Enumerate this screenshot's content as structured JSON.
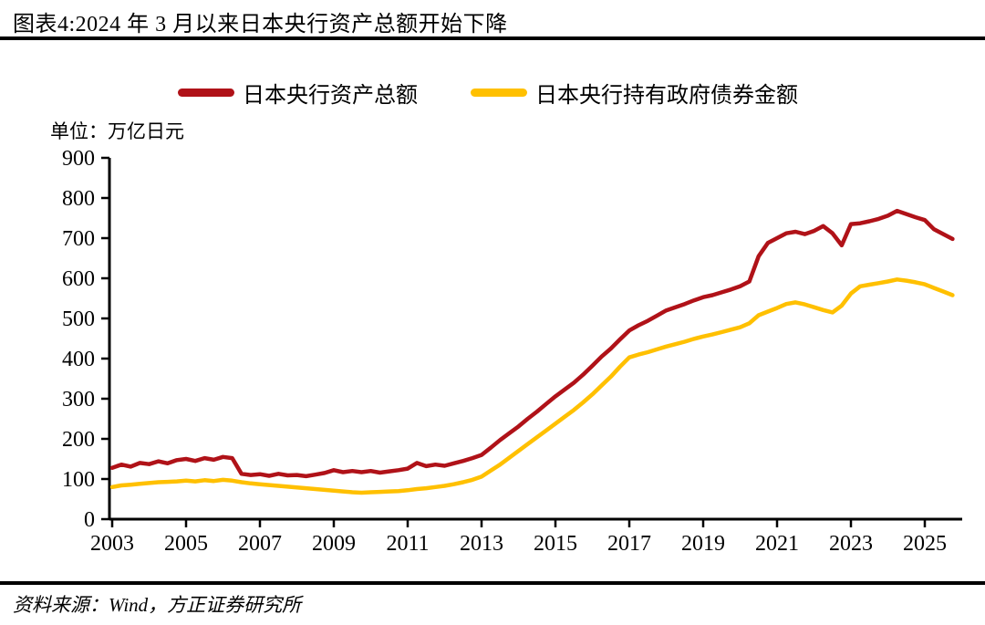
{
  "page": {
    "title": "图表4:2024 年 3 月以来日本央行资产总额开始下降",
    "source": "资料来源：Wind，方正证券研究所"
  },
  "unit_label": "单位：万亿日元",
  "legend": {
    "items": [
      {
        "label": "日本央行资产总额",
        "color": "#B01218"
      },
      {
        "label": "日本央行持有政府债券金额",
        "color": "#FFC000"
      }
    ]
  },
  "chart_data": {
    "type": "line",
    "title": "图表4:2024 年 3 月以来日本央行资产总额开始下降",
    "ylabel": "单位：万亿日元",
    "xlabel": "",
    "grid": false,
    "legend_position": "top",
    "ylim": [
      0,
      900
    ],
    "yticks": [
      0,
      100,
      200,
      300,
      400,
      500,
      600,
      700,
      800,
      900
    ],
    "xticks": [
      2003,
      2005,
      2007,
      2009,
      2011,
      2013,
      2015,
      2017,
      2019,
      2021,
      2023,
      2025
    ],
    "x_start": 2003.0,
    "x_step": 0.25,
    "x_end": 2025.75,
    "series": [
      {
        "name": "日本央行资产总额",
        "color": "#B01218",
        "values": [
          128,
          136,
          131,
          140,
          137,
          144,
          139,
          147,
          150,
          145,
          152,
          148,
          155,
          152,
          113,
          110,
          112,
          108,
          113,
          109,
          110,
          107,
          111,
          115,
          122,
          117,
          120,
          117,
          120,
          116,
          119,
          122,
          126,
          140,
          132,
          136,
          133,
          139,
          145,
          152,
          160,
          178,
          197,
          214,
          231,
          250,
          268,
          287,
          306,
          323,
          340,
          360,
          382,
          405,
          425,
          448,
          470,
          483,
          494,
          507,
          520,
          528,
          536,
          545,
          553,
          558,
          565,
          572,
          580,
          592,
          655,
          688,
          700,
          712,
          716,
          710,
          718,
          730,
          712,
          682,
          735,
          737,
          742,
          748,
          756,
          768,
          760,
          752,
          745,
          722,
          710,
          698
        ]
      },
      {
        "name": "日本央行持有政府债券金额",
        "color": "#FFC000",
        "values": [
          80,
          84,
          86,
          88,
          90,
          92,
          93,
          94,
          96,
          94,
          97,
          95,
          98,
          96,
          92,
          89,
          87,
          85,
          83,
          81,
          79,
          77,
          75,
          73,
          71,
          69,
          67,
          66,
          67,
          68,
          69,
          70,
          72,
          75,
          77,
          80,
          83,
          87,
          92,
          98,
          106,
          121,
          136,
          153,
          170,
          187,
          204,
          221,
          238,
          255,
          272,
          291,
          311,
          333,
          355,
          380,
          403,
          410,
          416,
          423,
          430,
          436,
          442,
          449,
          455,
          460,
          466,
          472,
          478,
          488,
          508,
          517,
          526,
          536,
          540,
          535,
          528,
          521,
          515,
          532,
          562,
          580,
          584,
          588,
          592,
          597,
          594,
          590,
          585,
          576,
          567,
          558
        ]
      }
    ]
  }
}
